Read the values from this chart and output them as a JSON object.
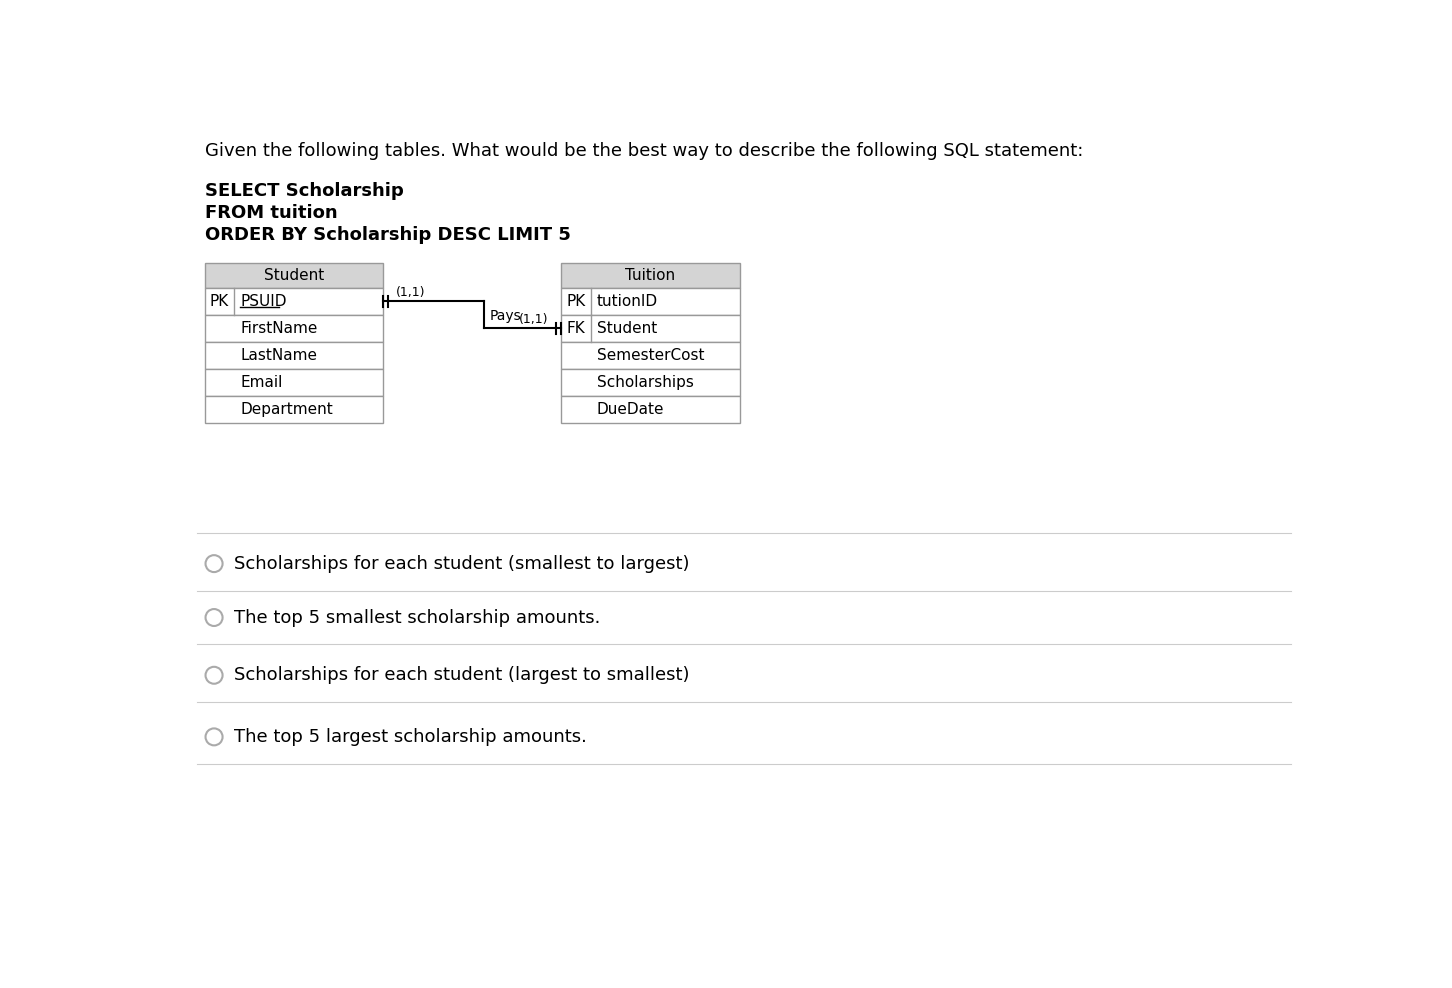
{
  "bg_color": "#ffffff",
  "title_text": "Given the following tables. What would be the best way to describe the following SQL statement:",
  "sql_lines": [
    "SELECT Scholarship",
    "FROM tuition",
    "ORDER BY Scholarship DESC LIMIT 5"
  ],
  "student_table": {
    "header": "Student",
    "rows": [
      {
        "label": "PK",
        "field": "PSUID",
        "underline": true
      },
      {
        "label": "",
        "field": "FirstName",
        "underline": false
      },
      {
        "label": "",
        "field": "LastName",
        "underline": false
      },
      {
        "label": "",
        "field": "Email",
        "underline": false
      },
      {
        "label": "",
        "field": "Department",
        "underline": false
      }
    ]
  },
  "tuition_table": {
    "header": "Tuition",
    "rows": [
      {
        "label": "PK",
        "field": "tutionID",
        "underline": false
      },
      {
        "label": "FK",
        "field": "Student",
        "underline": false
      },
      {
        "label": "",
        "field": "SemesterCost",
        "underline": false
      },
      {
        "label": "",
        "field": "Scholarships",
        "underline": false
      },
      {
        "label": "",
        "field": "DueDate",
        "underline": false
      }
    ]
  },
  "relationship_label": "Pays",
  "options": [
    "Scholarships for each student (smallest to largest)",
    "The top 5 smallest scholarship amounts.",
    "Scholarships for each student (largest to smallest)",
    "The top 5 largest scholarship amounts."
  ],
  "font_size_title": 13,
  "font_size_sql": 13,
  "font_size_table": 11,
  "font_size_options": 13,
  "header_color": "#d4d4d4",
  "border_color": "#999999",
  "separator_color": "#cccccc",
  "circle_color": "#aaaaaa"
}
